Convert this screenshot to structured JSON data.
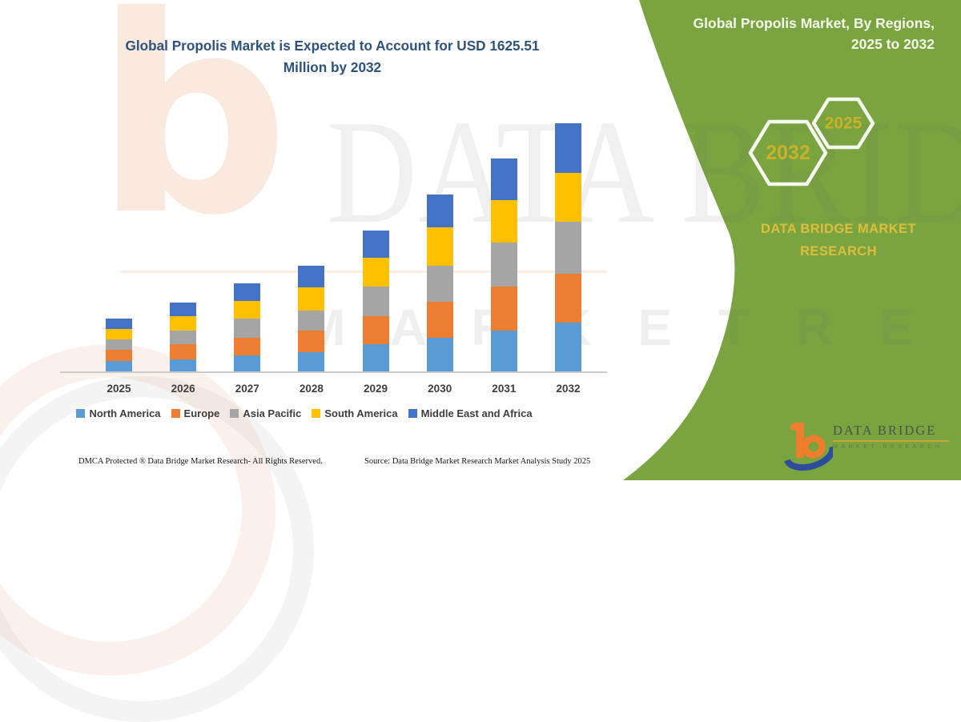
{
  "page": {
    "title_line1": "Global Propolis Market is Expected to Account for USD 1625.51",
    "title_line2": "Million by 2032"
  },
  "panel": {
    "title_line1": "Global Propolis Market, By Regions,",
    "title_line2": "2025 to 2032",
    "hexagons": [
      {
        "year": "2032"
      },
      {
        "year": "2025"
      }
    ],
    "brand_line1": "DATA BRIDGE MARKET",
    "brand_line2": "RESEARCH",
    "accent_green": "#7aa440",
    "gold": "#dcbe3c"
  },
  "logo": {
    "name": "DATA BRIDGE",
    "subtext": "MARKET RESEARCH",
    "mark_orange": "#ee7d2d",
    "mark_blue": "#2e4c9c"
  },
  "watermark": {
    "letter": "b",
    "line1": "DATA BRIDGE",
    "line2": "M A R K E T   R E S E A R C H"
  },
  "footer": {
    "left": "DMCA Protected ® Data Bridge Market Research-  All Rights Reserved.",
    "right": "Source: Data Bridge Market Research  Market Analysis Study 2025"
  },
  "chart_data": {
    "type": "bar",
    "stacked": true,
    "title": "Global Propolis Market is Expected to Account for USD 1625.51 Million by 2032",
    "unit": "USD Million",
    "categories": [
      "2025",
      "2026",
      "2027",
      "2028",
      "2029",
      "2030",
      "2031",
      "2032"
    ],
    "series": [
      {
        "name": "North America",
        "color": "#5B9BD5",
        "values": [
          73,
          85,
          110,
          130,
          183,
          225,
          272,
          324
        ]
      },
      {
        "name": "Europe",
        "color": "#ED7D31",
        "values": [
          73,
          100,
          115,
          140,
          183,
          235,
          287,
          319
        ]
      },
      {
        "name": "Asia Pacific",
        "color": "#A5A5A5",
        "values": [
          68,
          85,
          125,
          135,
          193,
          235,
          287,
          340
        ]
      },
      {
        "name": "South America",
        "color": "#FFC000",
        "values": [
          68,
          95,
          115,
          150,
          188,
          250,
          277,
          319
        ]
      },
      {
        "name": "Middle East and Africa",
        "color": "#4472C4",
        "values": [
          68,
          90,
          115,
          140,
          178,
          215,
          272,
          323.51
        ]
      }
    ],
    "totals": [
      350,
      455,
      580,
      695,
      925,
      1160,
      1395,
      1625.51
    ],
    "xlabel": "",
    "ylabel": "",
    "ylim": [
      0,
      1700
    ],
    "grid": false,
    "legend_position": "bottom"
  }
}
